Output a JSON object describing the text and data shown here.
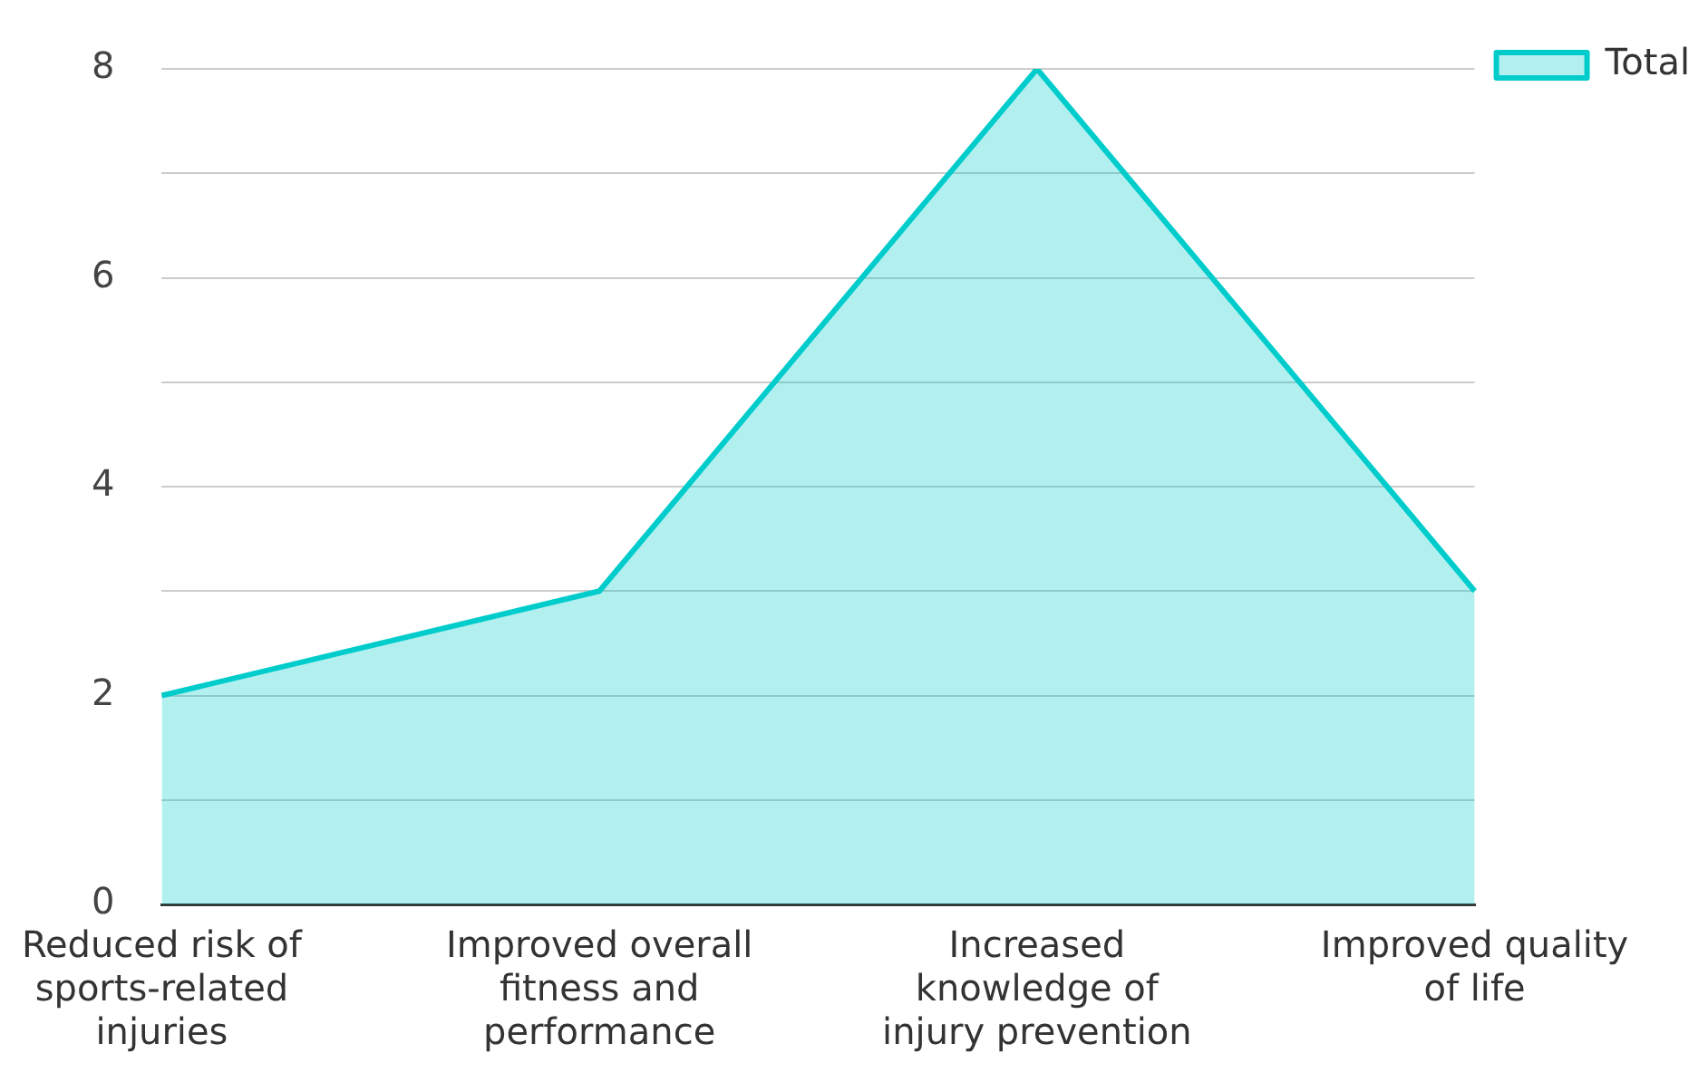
{
  "chart_data": {
    "type": "area",
    "categories": [
      "Reduced risk of sports-related injuries",
      "Improved overall fitness and performance",
      "Increased knowledge of injury prevention",
      "Improved quality of life"
    ],
    "series": [
      {
        "name": "Total",
        "color": "#00cccc",
        "values": [
          2,
          3,
          8,
          3
        ]
      }
    ],
    "ylim": [
      0,
      8
    ],
    "yticks": [
      0,
      {
        "value": 1,
        "label": null
      },
      2,
      {
        "value": 3,
        "label": null
      },
      4,
      {
        "value": 5,
        "label": null
      },
      6,
      {
        "value": 7,
        "label": null
      },
      8
    ],
    "grid": "y",
    "legend": "top right",
    "marker": "none",
    "line_style": "solid"
  }
}
